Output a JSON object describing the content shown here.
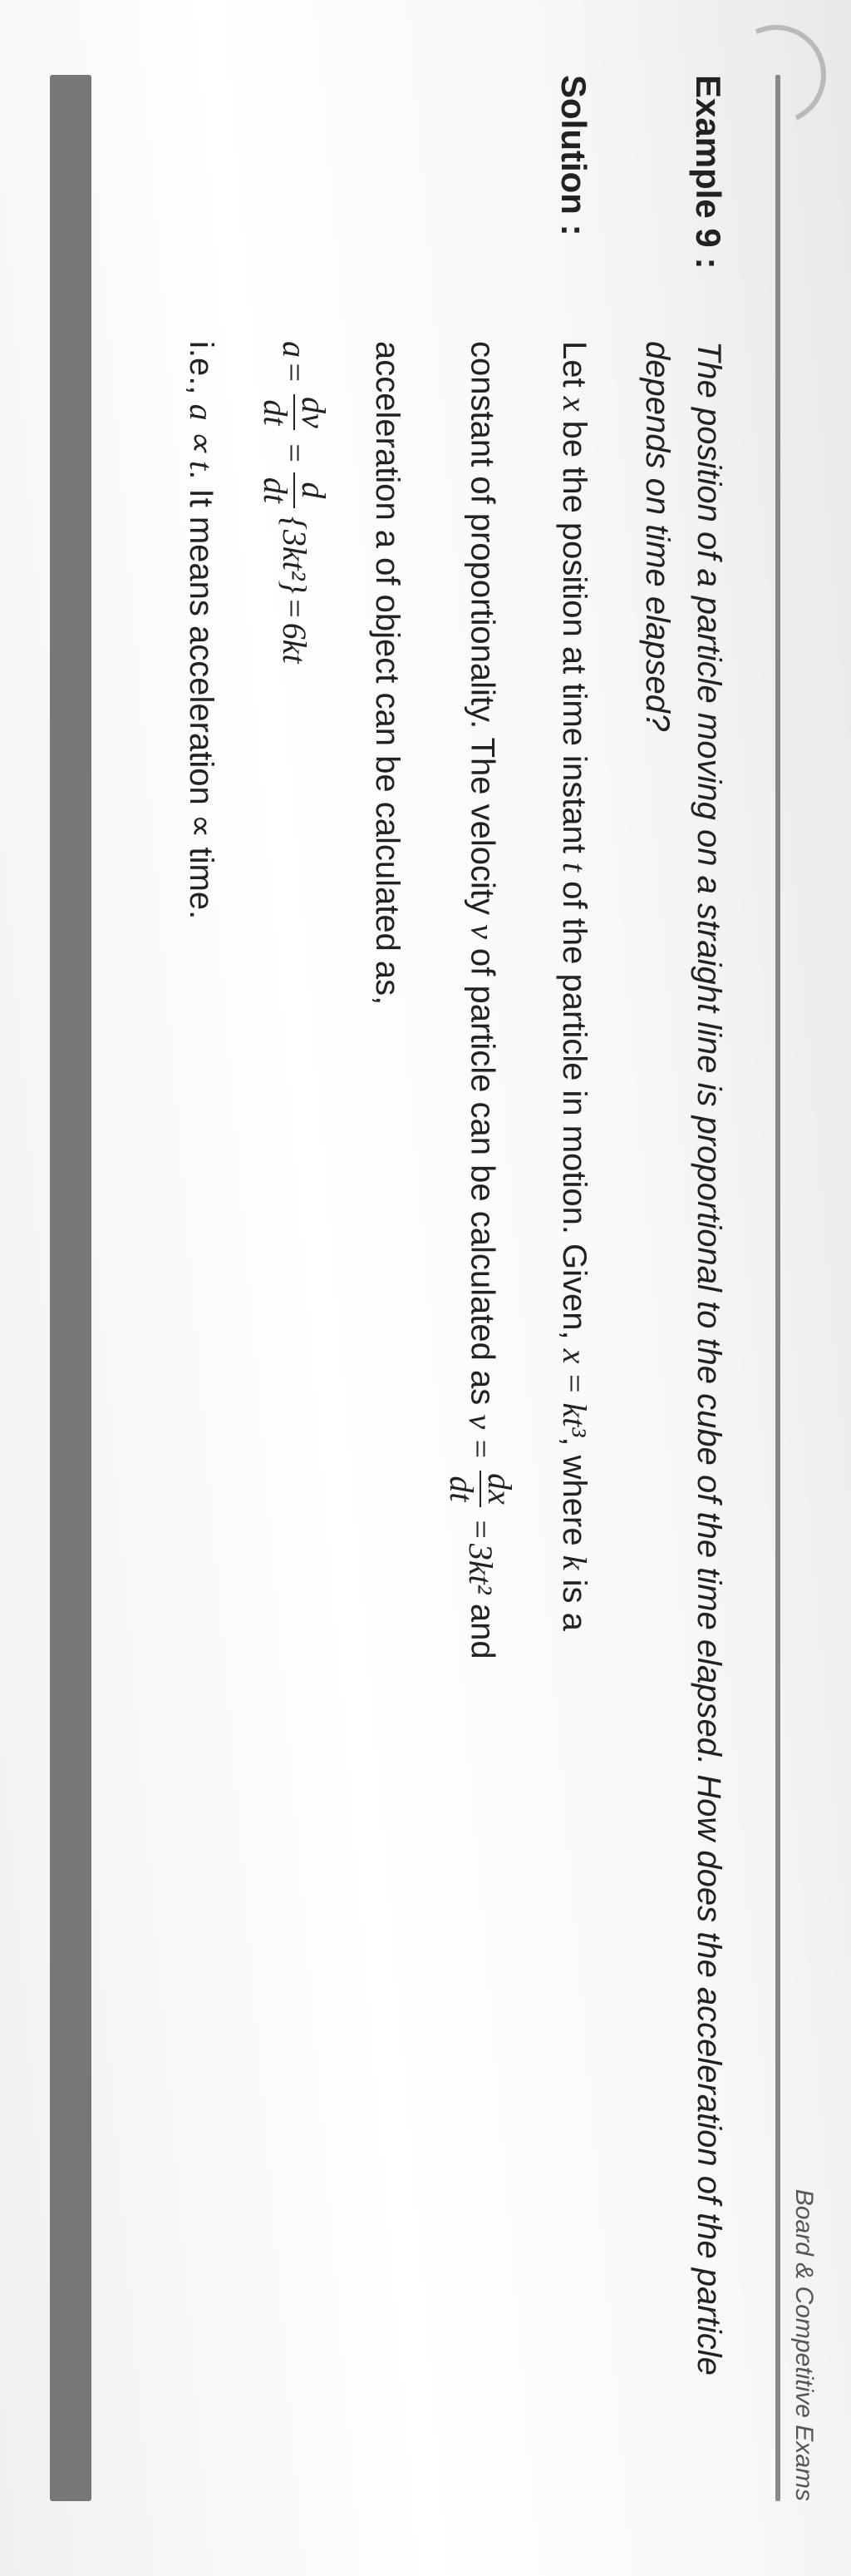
{
  "header": {
    "partial_text": "Board & Competitive Exams"
  },
  "example": {
    "label": "Example 9 :",
    "problem": "The position of a particle moving on a straight line is proportional to the cube of the time elapsed. How does the acceleration of the particle depends on time elapsed?"
  },
  "solution": {
    "label": "Solution :",
    "line1_a": "Let ",
    "line1_b": " be the position at time instant ",
    "line1_c": " of the particle in motion. Given, ",
    "line1_d": ", where ",
    "line1_e": " is a",
    "line2_a": "constant of proportionality. The velocity ",
    "line2_b": " of particle can be calculated as ",
    "line2_c": " and",
    "line3": "acceleration a of object can be calculated as,",
    "eq_rhs": "6kt",
    "eq_mid": "3kt²",
    "line5_a": "i.e., ",
    "line5_b": ". It means acceleration ∝ time."
  },
  "vars": {
    "x": "x",
    "t": "t",
    "v": "v",
    "k": "k",
    "a": "a",
    "eq_given": "x = kt³",
    "eq_v": "3kt²",
    "prop": "a ∝ t",
    "dv": "dv",
    "dt": "dt",
    "d": "d",
    "dx": "dx",
    "eq_sign": "=",
    "v_eq": "v ="
  }
}
